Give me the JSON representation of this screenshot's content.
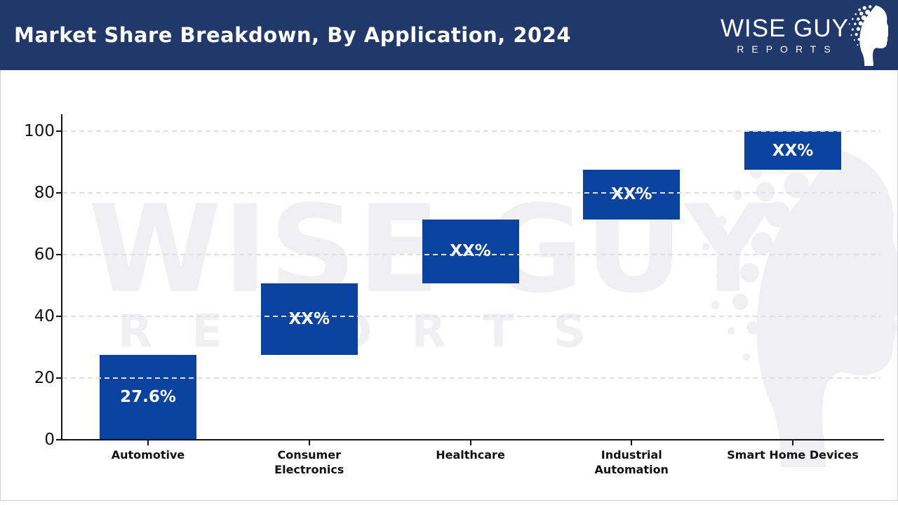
{
  "header": {
    "title": "Market Share Breakdown, By Application, 2024",
    "logo": {
      "line1": "WISE GUY",
      "line2": "REPORTS"
    }
  },
  "watermark": {
    "line1": "WISE GUY",
    "line2": "REPORTS"
  },
  "chart_data": {
    "type": "bar",
    "variant": "waterfall",
    "title": "Market Share Breakdown, By Application, 2024",
    "categories": [
      "Automotive",
      "Consumer\nElectronics",
      "Healthcare",
      "Industrial\nAutomation",
      "Smart Home Devices"
    ],
    "segments": [
      {
        "category": "Automotive",
        "start": 0,
        "end": 27.6,
        "label": "27.6%"
      },
      {
        "category": "Consumer Electronics",
        "start": 27.6,
        "end": 50.7,
        "label": "XX%"
      },
      {
        "category": "Healthcare",
        "start": 50.7,
        "end": 71.4,
        "label": "XX%"
      },
      {
        "category": "Industrial Automation",
        "start": 71.4,
        "end": 87.5,
        "label": "XX%"
      },
      {
        "category": "Smart Home Devices",
        "start": 87.5,
        "end": 100,
        "label": "XX%"
      }
    ],
    "ylim": [
      0,
      100
    ],
    "yticks": [
      0,
      20,
      40,
      60,
      80,
      100
    ],
    "grid": {
      "axis": "y",
      "style": "dashed",
      "color": "#e0e0e0"
    },
    "legend": null
  },
  "colors": {
    "header_bg": "#20386a",
    "bar": "#0a429f",
    "bar_label": "#ffffff",
    "axis": "#111111",
    "grid": "#e0e0e0",
    "watermark": "#f0f0f3",
    "card_border": "#cfcfcf"
  }
}
